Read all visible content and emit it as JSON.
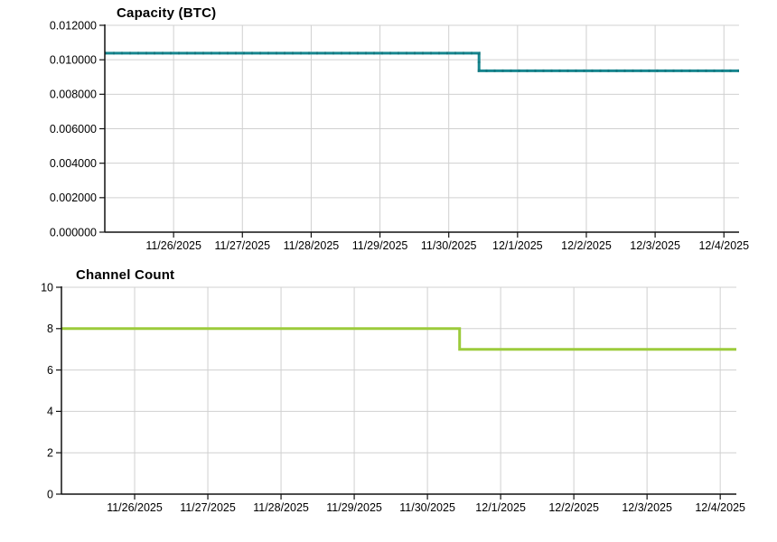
{
  "panel": {
    "name": "node-metrics-charts"
  },
  "chart_data": [
    {
      "type": "line",
      "title": "Capacity (BTC)",
      "line_color": "#17868f",
      "marker_color": "#0e6b72",
      "grid_color": "#d0d0d0",
      "axis_color": "#111111",
      "ylabel": "",
      "xlabel": "",
      "ylim": [
        0,
        0.012
      ],
      "ytick_labels": [
        "0.000000",
        "0.002000",
        "0.004000",
        "0.006000",
        "0.008000",
        "0.010000",
        "0.012000"
      ],
      "xlim_days": [
        -1.0,
        8.22
      ],
      "xtick_labels": [
        "11/26/2025",
        "11/27/2025",
        "11/28/2025",
        "11/29/2025",
        "11/30/2025",
        "12/1/2025",
        "12/2/2025",
        "12/3/2025",
        "12/4/2025"
      ],
      "grid": true,
      "legend": "none",
      "points": [
        {
          "x": -1.0,
          "y": 0.01038
        },
        {
          "x": 4.44,
          "y": 0.01038
        },
        {
          "x": 4.44,
          "y": 0.00936
        },
        {
          "x": 8.22,
          "y": 0.00936
        }
      ]
    },
    {
      "type": "line",
      "title": "Channel Count",
      "line_color": "#9ccb3b",
      "marker_color": "",
      "grid_color": "#d0d0d0",
      "axis_color": "#111111",
      "ylabel": "",
      "xlabel": "",
      "ylim": [
        0,
        10
      ],
      "ytick_labels": [
        "0",
        "2",
        "4",
        "6",
        "8",
        "10"
      ],
      "xlim_days": [
        -1.0,
        8.22
      ],
      "xtick_labels": [
        "11/26/2025",
        "11/27/2025",
        "11/28/2025",
        "11/29/2025",
        "11/30/2025",
        "12/1/2025",
        "12/2/2025",
        "12/3/2025",
        "12/4/2025"
      ],
      "grid": true,
      "legend": "none",
      "points": [
        {
          "x": -1.0,
          "y": 8
        },
        {
          "x": 4.44,
          "y": 8
        },
        {
          "x": 4.44,
          "y": 7
        },
        {
          "x": 8.22,
          "y": 7
        }
      ]
    }
  ]
}
